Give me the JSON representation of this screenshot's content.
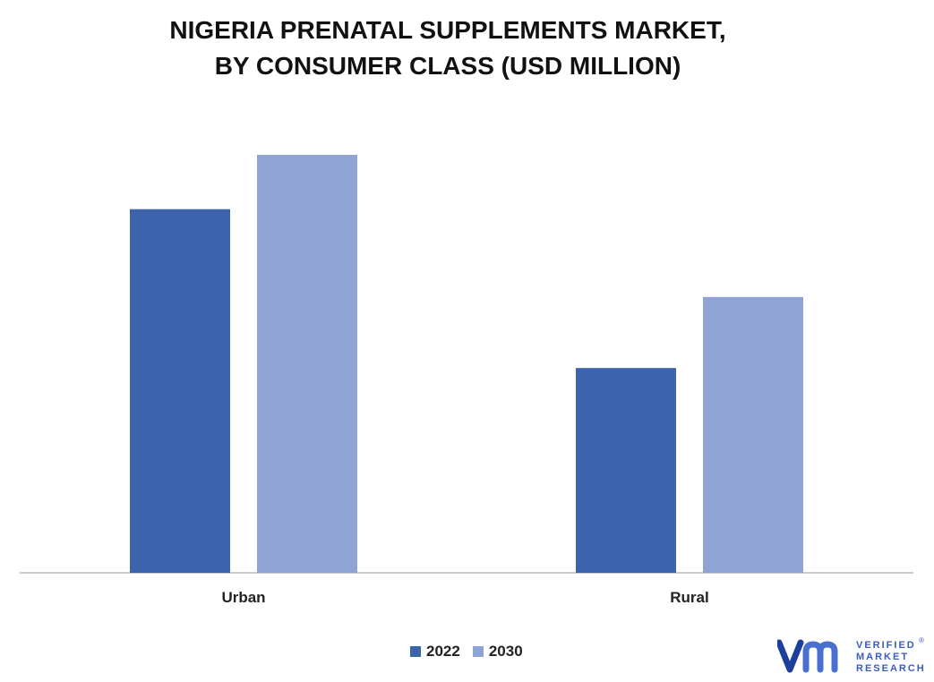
{
  "title_line1": "NIGERIA PRENATAL SUPPLEMENTS MARKET,",
  "title_line2": "BY CONSUMER CLASS (USD MILLION)",
  "chart_data": {
    "type": "bar",
    "categories": [
      "Urban",
      "Rural"
    ],
    "series": [
      {
        "name": "2022",
        "values": [
          87,
          49
        ],
        "color": "#3d63ad"
      },
      {
        "name": "2030",
        "values": [
          100,
          66
        ],
        "color": "#8fa4d5"
      }
    ],
    "ylim": [
      0,
      100
    ],
    "grid": false,
    "legend_position": "bottom-center"
  },
  "logo": {
    "mark": "vm",
    "line1": "VERIFIED",
    "line2": "MARKET",
    "line3": "RESEARCH",
    "registered": "®",
    "colors": [
      "#1d3f9b",
      "#4a6fd1"
    ]
  }
}
